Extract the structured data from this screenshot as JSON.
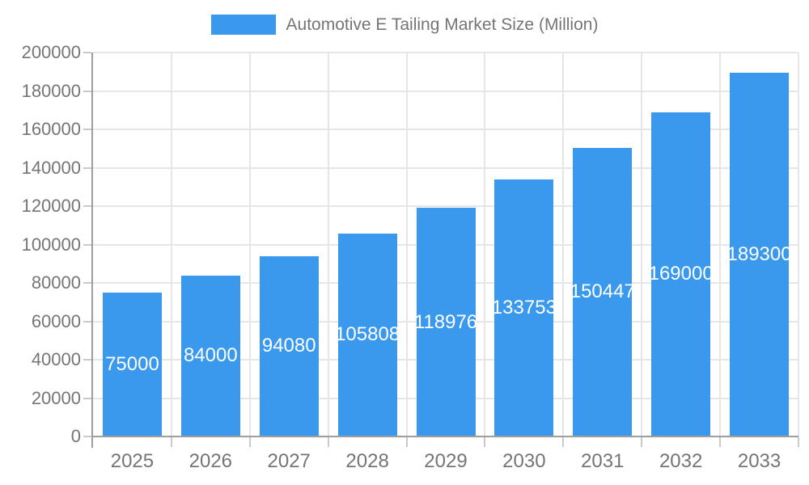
{
  "chart_data": {
    "type": "bar",
    "title": "Automotive E Tailing Market Size (Million)",
    "categories": [
      "2025",
      "2026",
      "2027",
      "2028",
      "2029",
      "2030",
      "2031",
      "2032",
      "2033"
    ],
    "values": [
      75000,
      84000,
      94080,
      105808,
      118976,
      133753,
      150447,
      169000,
      189300
    ],
    "bar_labels": [
      "75000",
      "84000",
      "94080",
      "105808",
      "118976",
      "133753",
      "150447",
      "169000",
      "189300"
    ],
    "xlabel": "",
    "ylabel": "",
    "ylim": [
      0,
      200000
    ],
    "ytick_step": 20000,
    "ytick_labels": [
      "0",
      "20000",
      "40000",
      "60000",
      "80000",
      "100000",
      "120000",
      "140000",
      "160000",
      "180000",
      "200000"
    ],
    "grid": true,
    "legend_position": "top",
    "colors": {
      "bar": "#3a99ed",
      "grid": "#e6e6e6",
      "axis": "#9e9e9e",
      "tick": "#c9c9c9",
      "text": "#757575",
      "bar_label": "#ffffff"
    }
  }
}
